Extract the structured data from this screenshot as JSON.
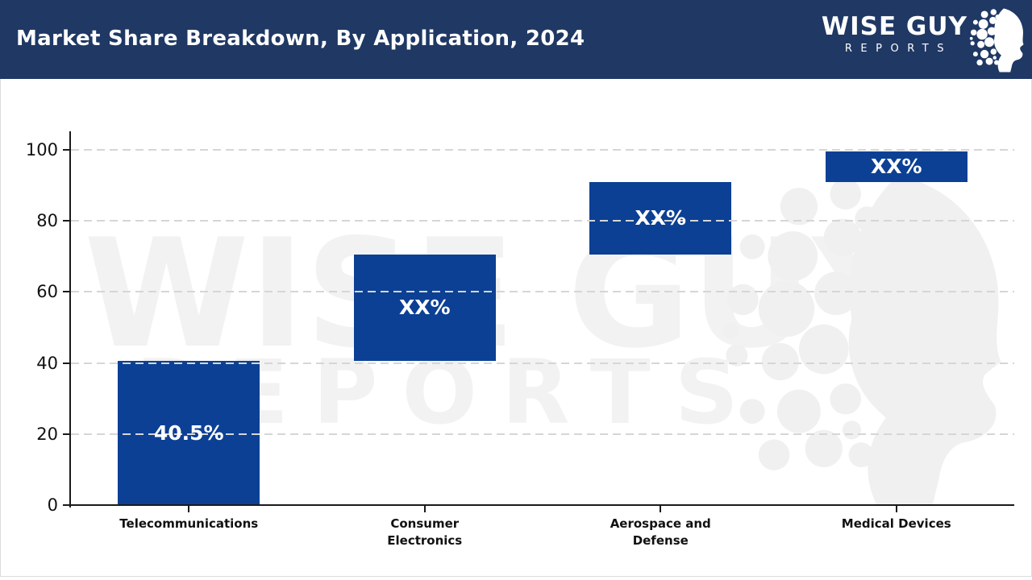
{
  "header": {
    "title": "Market Share Breakdown, By Application, 2024",
    "logo": {
      "line1": "WISE GUY",
      "line2": "REPORTS"
    }
  },
  "watermark": {
    "line1": "WISE GUY",
    "line2": "REPORTS",
    "face_icon": "dotted-head-profile"
  },
  "colors": {
    "header_bg": "#1f3864",
    "bar": "#0c4094",
    "bar_label_text": "#ffffff",
    "gridline": "#d6d6d6",
    "axis": "#1a1a1a",
    "watermark": "#f2f2f2",
    "title_text": "#ffffff"
  },
  "chart_data": {
    "type": "bar",
    "subtype": "floating-segment-breakdown",
    "title": "Market Share Breakdown, By Application, 2024",
    "xlabel": "",
    "ylabel": "",
    "categories": [
      "Telecommunications",
      "Consumer Electronics",
      "Aerospace and Defense",
      "Medical Devices"
    ],
    "category_display_lines": [
      [
        "Telecommunications"
      ],
      [
        "Consumer",
        "Electronics"
      ],
      [
        "Aerospace and",
        "Defense"
      ],
      [
        "Medical Devices"
      ]
    ],
    "segments": [
      {
        "category": "Telecommunications",
        "label": "40.5%",
        "start": 0,
        "end": 40.5
      },
      {
        "category": "Consumer Electronics",
        "label": "XX%",
        "start": 40.5,
        "end": 70.5
      },
      {
        "category": "Aerospace and Defense",
        "label": "XX%",
        "start": 70.5,
        "end": 91
      },
      {
        "category": "Medical Devices",
        "label": "XX%",
        "start": 91,
        "end": 99.5
      }
    ],
    "y_ticks": [
      0,
      20,
      40,
      60,
      80,
      100
    ],
    "ylim": [
      0,
      105
    ],
    "grid": "horizontal-dashed-over-bars",
    "legend": "none"
  }
}
